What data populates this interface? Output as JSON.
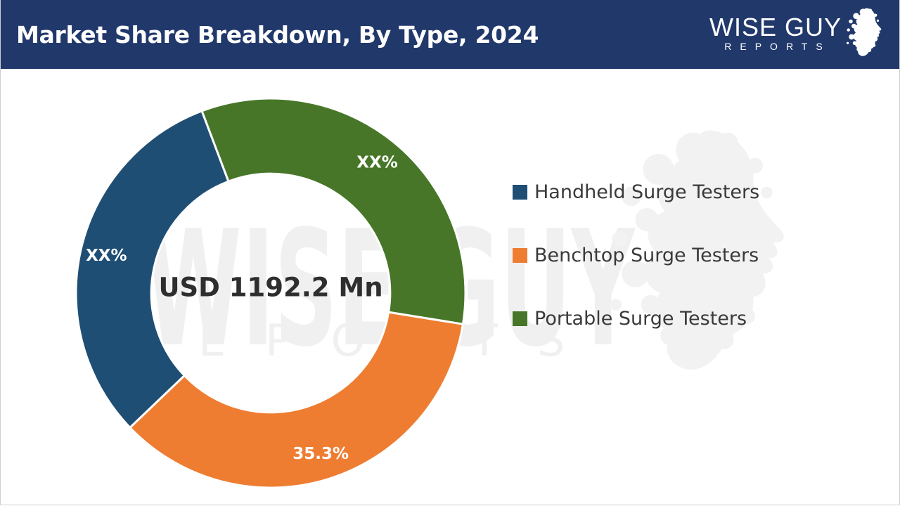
{
  "header": {
    "title": "Market Share Breakdown, By Type, 2024",
    "logo": {
      "line1": "WISE GUY",
      "line2": "REPORTS"
    }
  },
  "watermark": {
    "line1": "WISE GUY",
    "line2": "REPORTS"
  },
  "chart_data": {
    "type": "donut",
    "title": "Market Share Breakdown, By Type, 2024",
    "center_label": "USD 1192.2 Mn",
    "start_angle_deg": 110.7,
    "direction": "counterclockwise",
    "inner_radius_ratio": 0.613,
    "label_radius_ratio": 0.865,
    "legend_position": "right",
    "segments": [
      {
        "name": "Handheld Surge Testers",
        "value_pct": 31.4,
        "display_label": "XX%",
        "color": "#1f4e74"
      },
      {
        "name": "Benchtop Surge Testers",
        "value_pct": 35.3,
        "display_label": "35.3%",
        "color": "#ee7d32"
      },
      {
        "name": "Portable Surge Testers",
        "value_pct": 33.3,
        "display_label": "XX%",
        "color": "#477628"
      }
    ]
  },
  "colors": {
    "header_bg": "#21386b",
    "segment_gap": "#ffffff",
    "legend_text": "#3a3a3a",
    "center_text": "#2e2e2e",
    "watermark": "#f0f0f0",
    "watermark_face": "#f2f2f2",
    "border": "#cfcfcf"
  }
}
